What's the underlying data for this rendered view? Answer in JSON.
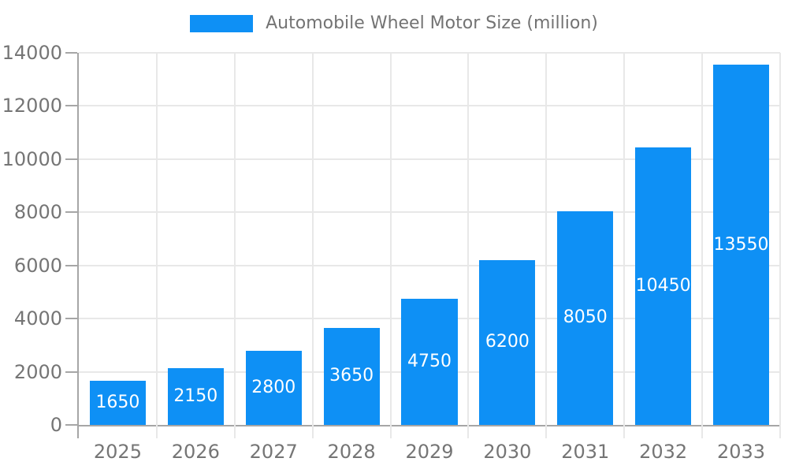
{
  "chart_data": {
    "type": "bar",
    "title": "Automobile Wheel Motor Size (million)",
    "categories": [
      "2025",
      "2026",
      "2027",
      "2028",
      "2029",
      "2030",
      "2031",
      "2032",
      "2033"
    ],
    "values": [
      1650,
      2150,
      2800,
      3650,
      4750,
      6200,
      8050,
      10450,
      13550
    ],
    "xlabel": "",
    "ylabel": "",
    "ylim": [
      0,
      14000
    ],
    "ytick_step": 2000,
    "ytick_labels": [
      "0",
      "2000",
      "4000",
      "6000",
      "8000",
      "10000",
      "12000",
      "14000"
    ],
    "grid": true,
    "legend_position": "top",
    "colors": {
      "bar": "#0e90f5",
      "bar_label": "#ffffff",
      "axis_text": "#757575",
      "axis_line": "#a6a6a6",
      "gridline": "#e8e8e8",
      "legend_text": "#737373",
      "background": "#ffffff"
    }
  }
}
